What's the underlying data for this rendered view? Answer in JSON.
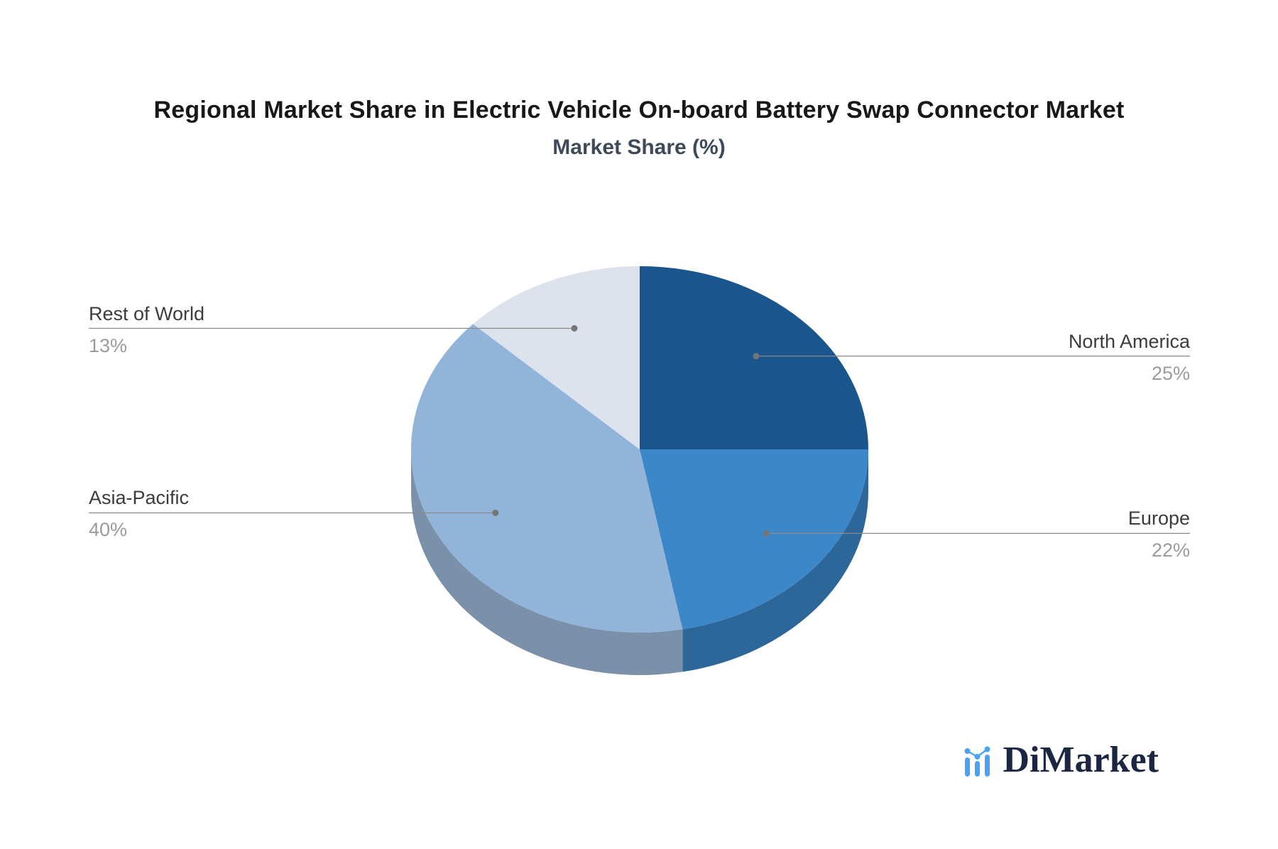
{
  "title": "Regional Market Share in Electric Vehicle On-board Battery Swap Connector Market",
  "subtitle": "Market Share (%)",
  "chart_data": {
    "type": "pie",
    "title": "Regional Market Share in Electric Vehicle On-board Battery Swap Connector Market",
    "subtitle": "Market Share (%)",
    "unit": "%",
    "direction": "clockwise",
    "start_angle": "12 o'clock",
    "effect": "3d-depth",
    "labels": [
      "North America",
      "Europe",
      "Asia-Pacific",
      "Rest of World"
    ],
    "values": [
      25,
      22,
      40,
      13
    ],
    "pct_labels": [
      "25%",
      "22%",
      "40%",
      "13%"
    ],
    "colors": [
      "#1a568d",
      "#3c87c8",
      "#92b4d8",
      "#dce3ed"
    ],
    "depth_colors": [
      "#14436e",
      "#2d6699",
      "#7b90a9",
      "#b9c3d1"
    ],
    "legend": "none"
  },
  "style": {
    "title_color": "#181818",
    "subtitle_color": "#3d4a59",
    "label_color": "#3c3c3c",
    "pct_color": "#9b9b9b",
    "leader_line_color": "#8a8a8a",
    "leader_dot_color": "#757575",
    "background": "#ffffff"
  },
  "logo": {
    "text": "DiMarket",
    "icon": "bar-line-chart-icon",
    "icon_color": "#4aa3f2",
    "text_color": "#1b2742"
  }
}
